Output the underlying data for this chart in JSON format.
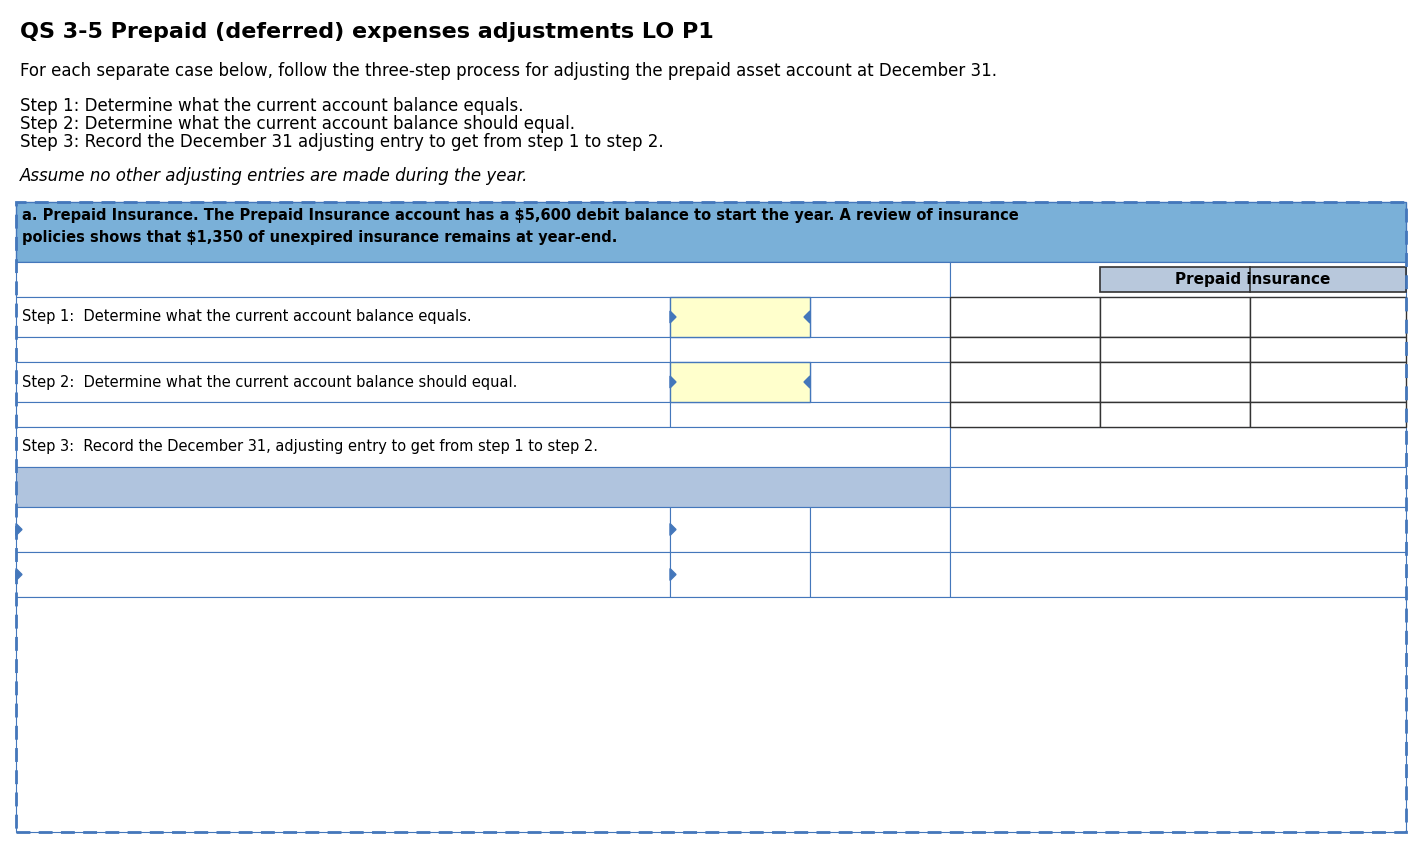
{
  "title": "QS 3-5 Prepaid (deferred) expenses adjustments LO P1",
  "intro_text": "For each separate case below, follow the three-step process for adjusting the prepaid asset account at December 31.",
  "step1_intro": "Step 1: Determine what the current account balance equals.",
  "step2_intro": "Step 2: Determine what the current account balance should equal.",
  "step3_intro": "Step 3: Record the December 31 adjusting entry to get from step 1 to step 2.",
  "italic_note": "Assume no other adjusting entries are made during the year.",
  "header_line1": "a. Prepaid Insurance. The Prepaid Insurance account has a $5,600 debit balance to start the year. A review of insurance",
  "header_line2": "policies shows that $1,350 of unexpired insurance remains at year-end.",
  "prepaid_label": "Prepaid insurance",
  "step1_label": "Step 1:  Determine what the current account balance equals.",
  "step2_label": "Step 2:  Determine what the current account balance should equal.",
  "step3_label": "Step 3:  Record the December 31, adjusting entry to get from step 1 to step 2.",
  "bg_color": "#ffffff",
  "header_bg": "#7ab0d8",
  "prepaid_header_bg": "#b8c8dc",
  "yellow_cell": "#ffffcc",
  "blue_cell": "#b0c4de",
  "dashed_border": "#4477bb",
  "inner_border": "#333333",
  "solid_border": "#555577"
}
